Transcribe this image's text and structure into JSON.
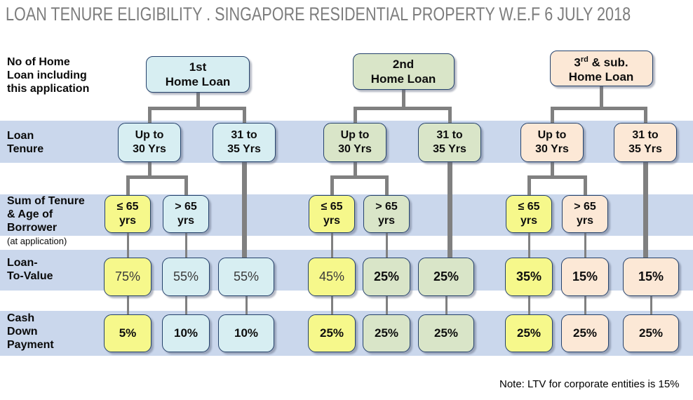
{
  "title": "LOAN TENURE ELIGIBILITY . SINGAPORE RESIDENTIAL PROPERTY W.E.F 6 JULY 2018",
  "left_labels": {
    "home_loan_count": [
      "No of Home",
      "Loan including",
      "this application"
    ],
    "loan_tenure": [
      "Loan",
      "Tenure"
    ],
    "sum_tenure_age": [
      "Sum of Tenure",
      "& Age of",
      "Borrower"
    ],
    "sum_tenure_age_note": "(at application)",
    "loan_to_value": [
      "Loan-",
      "To-Value"
    ],
    "cash_down": [
      "Cash",
      "Down",
      "Payment"
    ]
  },
  "colors": {
    "band": "#cad7ec",
    "border": "#24416b",
    "line": "#808080",
    "yellow": "#f6f88b",
    "section1": "#d7eef2",
    "section2": "#d9e5c8",
    "section3": "#fce8d6",
    "title_gray": "#7d7d7d"
  },
  "sections": [
    {
      "name": "1st-home-loan",
      "header": {
        "prefix": "1st",
        "sup": "",
        "suffix": "",
        "line2": "Home Loan"
      },
      "fill_key": "section1",
      "tenure_left": [
        "Up to",
        "30 Yrs"
      ],
      "tenure_right": [
        "31 to",
        "35 Yrs"
      ],
      "age_left": [
        "≤ 65",
        "yrs"
      ],
      "age_right": [
        "> 65",
        "yrs"
      ],
      "ltv": [
        {
          "value": "75%",
          "yellow": true,
          "bold": false
        },
        {
          "value": "55%",
          "yellow": false,
          "bold": false
        },
        {
          "value": "55%",
          "yellow": false,
          "bold": false
        }
      ],
      "cash": [
        {
          "value": "5%",
          "yellow": true
        },
        {
          "value": "10%",
          "yellow": false
        },
        {
          "value": "10%",
          "yellow": false
        }
      ]
    },
    {
      "name": "2nd-home-loan",
      "header": {
        "prefix": "2nd",
        "sup": "",
        "suffix": "",
        "line2": "Home Loan"
      },
      "fill_key": "section2",
      "tenure_left": [
        "Up to",
        "30 Yrs"
      ],
      "tenure_right": [
        "31 to",
        "35 Yrs"
      ],
      "age_left": [
        "≤ 65",
        "yrs"
      ],
      "age_right": [
        "> 65",
        "yrs"
      ],
      "ltv": [
        {
          "value": "45%",
          "yellow": true,
          "bold": false
        },
        {
          "value": "25%",
          "yellow": false,
          "bold": true
        },
        {
          "value": "25%",
          "yellow": false,
          "bold": true
        }
      ],
      "cash": [
        {
          "value": "25%",
          "yellow": true
        },
        {
          "value": "25%",
          "yellow": false
        },
        {
          "value": "25%",
          "yellow": false
        }
      ]
    },
    {
      "name": "3rd-home-loan",
      "header": {
        "prefix": "3",
        "sup": "rd",
        "suffix": " & sub.",
        "line2": "Home Loan"
      },
      "fill_key": "section3",
      "tenure_left": [
        "Up to",
        "30 Yrs"
      ],
      "tenure_right": [
        "31 to",
        "35 Yrs"
      ],
      "age_left": [
        "≤ 65",
        "yrs"
      ],
      "age_right": [
        "> 65",
        "yrs"
      ],
      "ltv": [
        {
          "value": "35%",
          "yellow": true,
          "bold": true
        },
        {
          "value": "15%",
          "yellow": false,
          "bold": true
        },
        {
          "value": "15%",
          "yellow": false,
          "bold": true
        }
      ],
      "cash": [
        {
          "value": "25%",
          "yellow": true
        },
        {
          "value": "25%",
          "yellow": false
        },
        {
          "value": "25%",
          "yellow": false
        }
      ]
    }
  ],
  "note": "Note: LTV for corporate entities is 15%"
}
